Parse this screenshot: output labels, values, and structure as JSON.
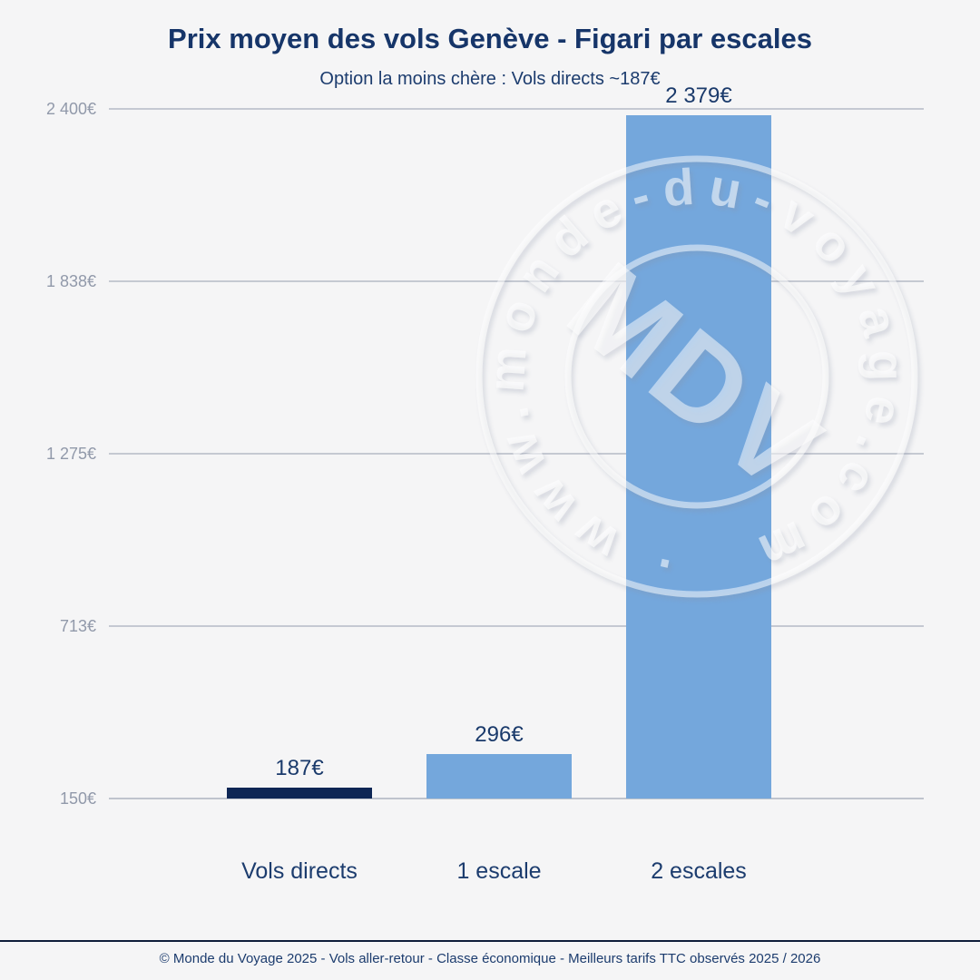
{
  "chart_data": {
    "type": "bar",
    "title": "Prix moyen des vols Genève - Figari par escales",
    "subtitle": "Option la moins chère : Vols directs ~187€",
    "categories": [
      "Vols directs",
      "1 escale",
      "2 escales"
    ],
    "values": [
      187,
      296,
      2379
    ],
    "value_labels": [
      "187€",
      "296€",
      "2 379€"
    ],
    "series_colors": [
      "#0e2655",
      "#74a7dc",
      "#74a7dc"
    ],
    "ylim": [
      150,
      2400
    ],
    "yticks": [
      {
        "value": 2400,
        "label": "2 400€"
      },
      {
        "value": 1838,
        "label": "1 838€"
      },
      {
        "value": 1275,
        "label": "1 275€"
      },
      {
        "value": 713,
        "label": "713€"
      },
      {
        "value": 150,
        "label": "150€"
      }
    ],
    "grid": true,
    "legend": false,
    "xlabel": "",
    "ylabel": ""
  },
  "watermark": {
    "ring_text": "· www.monde-du-voyage.com",
    "center_text": "MDV"
  },
  "footer": {
    "text": "© Monde du Voyage 2025 - Vols aller-retour - Classe économique - Meilleurs tarifs TTC observés 2025 / 2026"
  },
  "colors": {
    "background": "#f5f5f6",
    "title": "#163569",
    "subtitle": "#1c3c6e",
    "value_label": "#1a3a6b",
    "axis_tick": "#9199aa",
    "gridline": "#c5c9d2",
    "bar_direct": "#0e2655",
    "bar_stops": "#74a7dc",
    "footer_line": "#0f1e3a",
    "footer_text": "#1c3c6e"
  }
}
